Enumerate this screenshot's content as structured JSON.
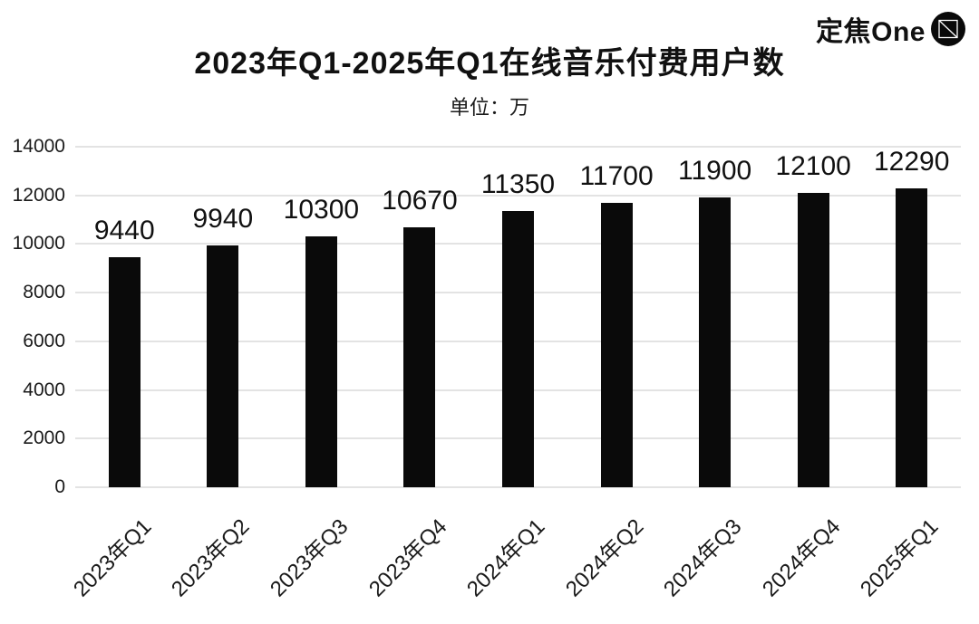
{
  "branding": {
    "logo_text": "定焦One"
  },
  "chart_data": {
    "type": "bar",
    "title": "2023年Q1-2025年Q1在线音乐付费用户数",
    "subtitle": "单位：万",
    "unit": "万",
    "categories": [
      "2023年Q1",
      "2023年Q2",
      "2023年Q3",
      "2023年Q4",
      "2024年Q1",
      "2024年Q2",
      "2024年Q3",
      "2024年Q4",
      "2025年Q1"
    ],
    "values": [
      9440,
      9940,
      10300,
      10670,
      11350,
      11700,
      11900,
      12100,
      12290
    ],
    "data_labels": [
      "9440",
      "9940",
      "10300",
      "10670",
      "11350",
      "11700",
      "11900",
      "12100",
      "12290"
    ],
    "ylim": [
      0,
      14000
    ],
    "yticks": [
      0,
      2000,
      4000,
      6000,
      8000,
      10000,
      12000,
      14000
    ],
    "grid": "horizontal",
    "x_tick_rotation_deg": 45,
    "bar_color": "#0a0a0a",
    "gridline_color": "#e3e3e3",
    "text_color": "#111111",
    "background_color": "#ffffff",
    "xlabel": "",
    "ylabel": ""
  }
}
